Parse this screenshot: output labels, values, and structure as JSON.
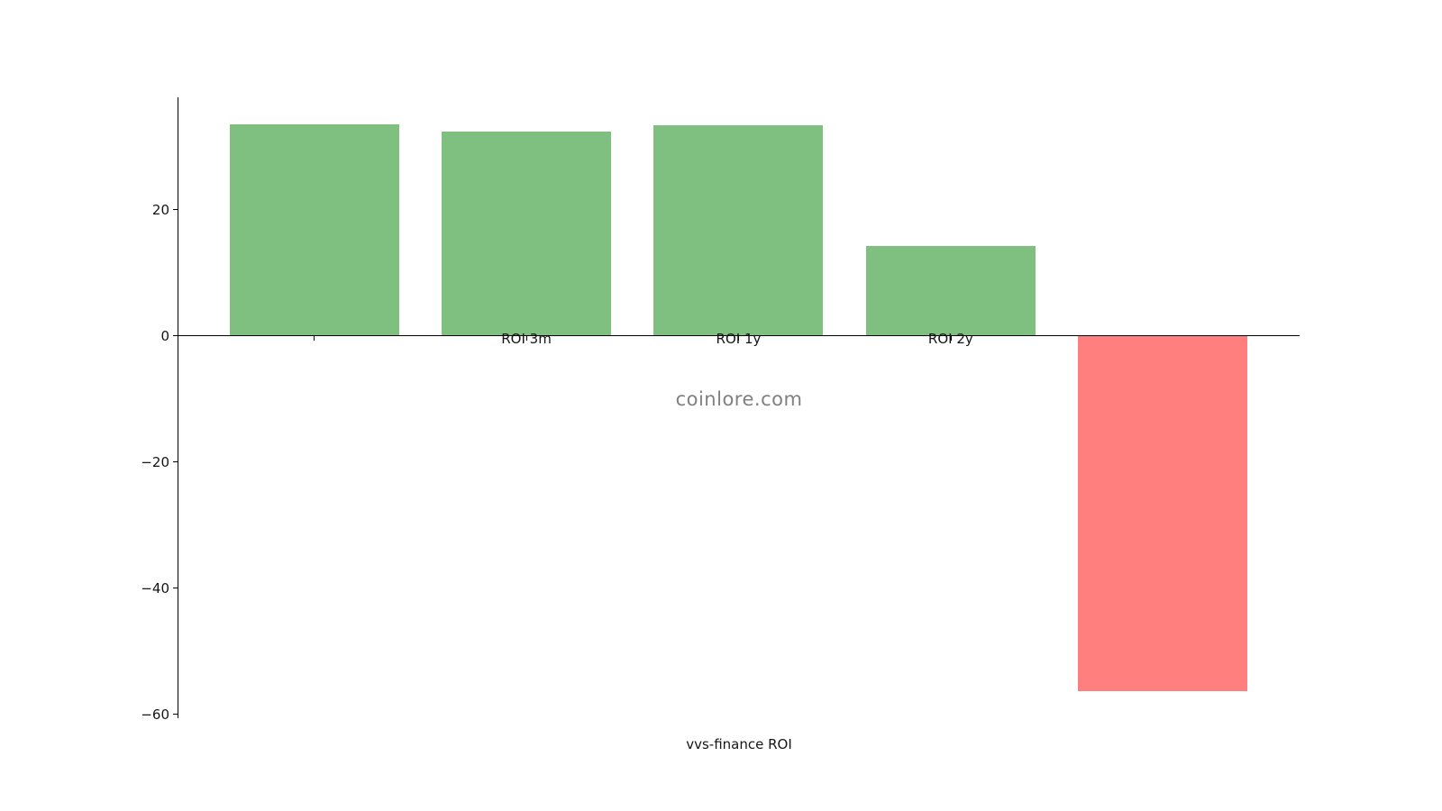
{
  "chart_data": {
    "type": "bar",
    "categories": [
      "",
      "ROI 3m",
      "ROI 1y",
      "ROI 2y",
      ""
    ],
    "values": [
      33.5,
      32.3,
      33.4,
      14.2,
      -56.3
    ],
    "series_note": "single series of ROI percentages; positive bars green, negative bar red",
    "title": "",
    "xlabel": "vvs-finance ROI",
    "ylabel": "",
    "y_ticks": [
      20,
      0,
      -20,
      -40,
      -60
    ],
    "ylim": [
      -60.5,
      37.5
    ],
    "grid": false,
    "legend": false,
    "watermark": "coinlore.com",
    "colors": {
      "positive": "#7fbf7f",
      "negative": "#ff7f7f",
      "axis": "#000000",
      "tick_label": "#151515",
      "watermark": "#808080"
    }
  }
}
